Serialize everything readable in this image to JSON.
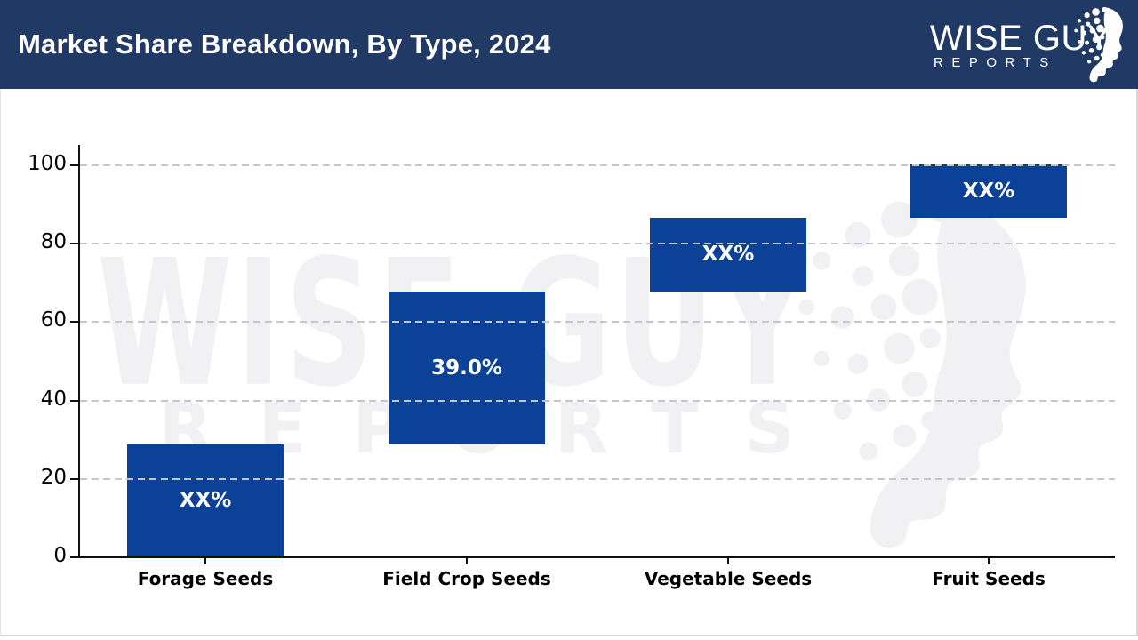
{
  "header": {
    "title": "Market Share Breakdown, By Type, 2024",
    "logo": {
      "line1": "WISE GUY",
      "line2": "REPORTS"
    }
  },
  "watermark": {
    "line1": "WISE GUY",
    "line2": "REPORTS"
  },
  "chart_data": {
    "type": "bar",
    "subtype": "floating-waterfall",
    "title": "Market Share Breakdown, By Type, 2024",
    "categories": [
      "Forage Seeds",
      "Field Crop Seeds",
      "Vegetable Seeds",
      "Fruit Seeds"
    ],
    "segments": [
      {
        "category": "Forage Seeds",
        "start": 0,
        "end": 28.5,
        "label": "XX%"
      },
      {
        "category": "Field Crop Seeds",
        "start": 28.5,
        "end": 67.5,
        "label": "39.0%"
      },
      {
        "category": "Vegetable Seeds",
        "start": 67.5,
        "end": 86.5,
        "label": "XX%"
      },
      {
        "category": "Fruit Seeds",
        "start": 86.5,
        "end": 100,
        "label": "XX%"
      }
    ],
    "yticks": [
      0,
      20,
      40,
      60,
      80,
      100
    ],
    "ylim": [
      0,
      100
    ],
    "xlabel": "",
    "ylabel": "",
    "grid": "horizontal-dashed-over-bars",
    "legend": "none",
    "bar_color": "#0B4298",
    "bar_label_color": "#FFFFFF"
  },
  "colors": {
    "header_bg": "#203A65",
    "bar": "#0B4298",
    "grid": "#C2C6CE",
    "axis": "#111111",
    "watermark": "#F1F1F3",
    "card_border": "#D7D7D7"
  }
}
